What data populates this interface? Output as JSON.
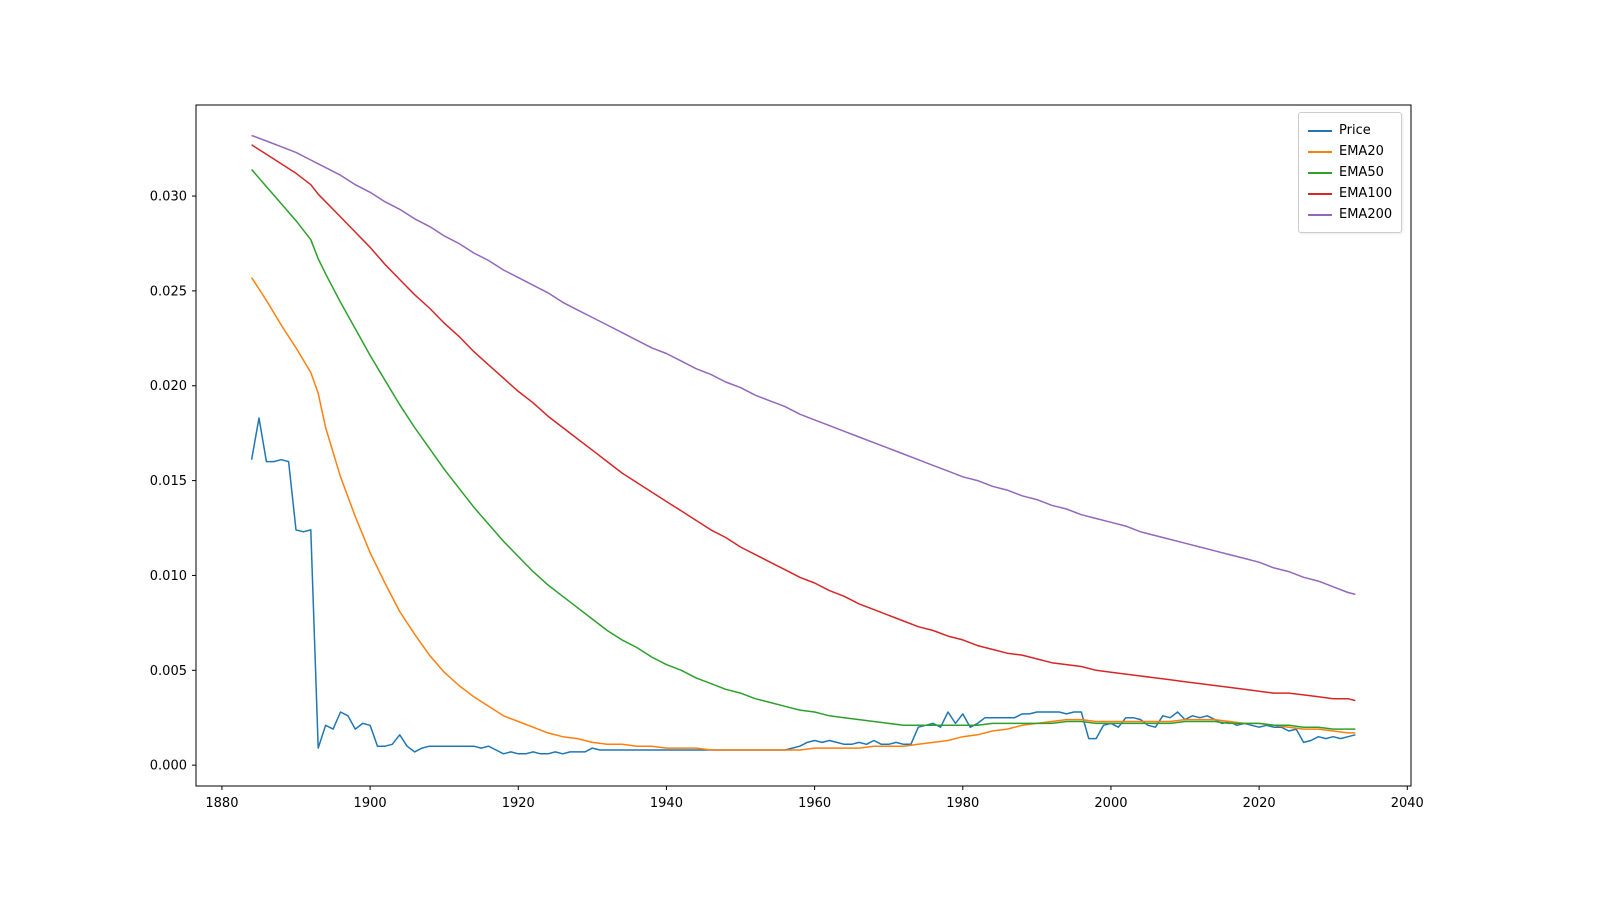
{
  "chart_data": {
    "type": "line",
    "title": "",
    "xlabel": "",
    "ylabel": "",
    "grid": false,
    "legend_position": "upper right",
    "background_color": "#ffffff",
    "axis_color": "#000000",
    "xlim": [
      1876.5,
      2040.5
    ],
    "ylim": [
      -0.0011,
      0.0348
    ],
    "x_ticks": [
      1880,
      1900,
      1920,
      1940,
      1960,
      1980,
      2000,
      2020,
      2040
    ],
    "y_ticks": [
      0.0,
      0.005,
      0.01,
      0.015,
      0.02,
      0.025,
      0.03
    ],
    "y_tick_labels": [
      "0.000",
      "0.005",
      "0.010",
      "0.015",
      "0.020",
      "0.025",
      "0.030"
    ],
    "x_ema": [
      1884,
      1886,
      1888,
      1890,
      1892,
      1893,
      1894,
      1896,
      1898,
      1900,
      1902,
      1904,
      1906,
      1908,
      1910,
      1912,
      1914,
      1916,
      1918,
      1920,
      1922,
      1924,
      1926,
      1928,
      1930,
      1932,
      1934,
      1936,
      1938,
      1940,
      1942,
      1944,
      1946,
      1948,
      1950,
      1952,
      1954,
      1956,
      1958,
      1960,
      1962,
      1964,
      1966,
      1968,
      1970,
      1972,
      1974,
      1976,
      1978,
      1980,
      1982,
      1984,
      1986,
      1988,
      1990,
      1992,
      1994,
      1996,
      1998,
      2000,
      2002,
      2004,
      2006,
      2008,
      2010,
      2012,
      2014,
      2016,
      2018,
      2020,
      2022,
      2024,
      2026,
      2028,
      2030,
      2032,
      2033
    ],
    "series": [
      {
        "name": "Price",
        "color": "#1f77b4",
        "x_start": 1884,
        "x_step": 1,
        "y": [
          0.0161,
          0.0183,
          0.016,
          0.016,
          0.0161,
          0.016,
          0.0124,
          0.0123,
          0.0124,
          0.0009,
          0.0021,
          0.0019,
          0.0028,
          0.0026,
          0.0019,
          0.0022,
          0.0021,
          0.001,
          0.001,
          0.0011,
          0.0016,
          0.001,
          0.0007,
          0.0009,
          0.001,
          0.001,
          0.001,
          0.001,
          0.001,
          0.001,
          0.001,
          0.0009,
          0.001,
          0.0008,
          0.0006,
          0.0007,
          0.0006,
          0.0006,
          0.0007,
          0.0006,
          0.0006,
          0.0007,
          0.0006,
          0.0007,
          0.0007,
          0.0007,
          0.0009,
          0.0008,
          0.0008,
          0.0008,
          0.0008,
          0.0008,
          0.0008,
          0.0008,
          0.0008,
          0.0008,
          0.0008,
          0.0008,
          0.0008,
          0.0008,
          0.0008,
          0.0008,
          0.0008,
          0.0008,
          0.0008,
          0.0008,
          0.0008,
          0.0008,
          0.0008,
          0.0008,
          0.0008,
          0.0008,
          0.0008,
          0.0009,
          0.001,
          0.0012,
          0.0013,
          0.0012,
          0.0013,
          0.0012,
          0.0011,
          0.0011,
          0.0012,
          0.0011,
          0.0013,
          0.0011,
          0.0011,
          0.0012,
          0.0011,
          0.0011,
          0.002,
          0.0021,
          0.0022,
          0.002,
          0.0028,
          0.0022,
          0.0027,
          0.002,
          0.0022,
          0.0025,
          0.0025,
          0.0025,
          0.0025,
          0.0025,
          0.0027,
          0.0027,
          0.0028,
          0.0028,
          0.0028,
          0.0028,
          0.0027,
          0.0028,
          0.0028,
          0.0014,
          0.0014,
          0.0021,
          0.0022,
          0.002,
          0.0025,
          0.0025,
          0.0024,
          0.0021,
          0.002,
          0.0026,
          0.0025,
          0.0028,
          0.0024,
          0.0026,
          0.0025,
          0.0026,
          0.0024,
          0.0022,
          0.0023,
          0.0021,
          0.0022,
          0.0021,
          0.002,
          0.0021,
          0.002,
          0.002,
          0.0018,
          0.0019,
          0.0012,
          0.0013,
          0.0015,
          0.0014,
          0.0015,
          0.0014,
          0.0015,
          0.0016
        ]
      },
      {
        "name": "EMA20",
        "color": "#ff7f0e",
        "x_ref": "x_ema",
        "y": [
          0.0257,
          0.0245,
          0.0232,
          0.022,
          0.0207,
          0.0196,
          0.0178,
          0.0152,
          0.0131,
          0.0112,
          0.0096,
          0.0081,
          0.0069,
          0.0058,
          0.0049,
          0.0042,
          0.0036,
          0.0031,
          0.0026,
          0.0023,
          0.002,
          0.0017,
          0.0015,
          0.0014,
          0.0012,
          0.0011,
          0.0011,
          0.001,
          0.001,
          0.0009,
          0.0009,
          0.0009,
          0.0008,
          0.0008,
          0.0008,
          0.0008,
          0.0008,
          0.0008,
          0.0008,
          0.0009,
          0.0009,
          0.0009,
          0.0009,
          0.001,
          0.001,
          0.001,
          0.0011,
          0.0012,
          0.0013,
          0.0015,
          0.0016,
          0.0018,
          0.0019,
          0.0021,
          0.0022,
          0.0023,
          0.0024,
          0.0024,
          0.0023,
          0.0023,
          0.0023,
          0.0023,
          0.0023,
          0.0023,
          0.0024,
          0.0024,
          0.0024,
          0.0023,
          0.0022,
          0.0022,
          0.0021,
          0.002,
          0.0019,
          0.0019,
          0.0018,
          0.0017,
          0.0017
        ]
      },
      {
        "name": "EMA50",
        "color": "#2ca02c",
        "x_ref": "x_ema",
        "y": [
          0.0314,
          0.0305,
          0.0296,
          0.0287,
          0.0277,
          0.0267,
          0.0259,
          0.0244,
          0.023,
          0.0216,
          0.0203,
          0.019,
          0.0178,
          0.0167,
          0.0156,
          0.0146,
          0.0136,
          0.0127,
          0.0118,
          0.011,
          0.0102,
          0.0095,
          0.0089,
          0.0083,
          0.0077,
          0.0071,
          0.0066,
          0.0062,
          0.0057,
          0.0053,
          0.005,
          0.0046,
          0.0043,
          0.004,
          0.0038,
          0.0035,
          0.0033,
          0.0031,
          0.0029,
          0.0028,
          0.0026,
          0.0025,
          0.0024,
          0.0023,
          0.0022,
          0.0021,
          0.0021,
          0.0021,
          0.0021,
          0.0021,
          0.0021,
          0.0022,
          0.0022,
          0.0022,
          0.0022,
          0.0022,
          0.0023,
          0.0023,
          0.0022,
          0.0022,
          0.0022,
          0.0022,
          0.0022,
          0.0022,
          0.0023,
          0.0023,
          0.0023,
          0.0022,
          0.0022,
          0.0022,
          0.0021,
          0.0021,
          0.002,
          0.002,
          0.0019,
          0.0019,
          0.0019
        ]
      },
      {
        "name": "EMA100",
        "color": "#d62728",
        "x_ref": "x_ema",
        "y": [
          0.0327,
          0.0322,
          0.0317,
          0.0312,
          0.0306,
          0.0301,
          0.0297,
          0.0289,
          0.0281,
          0.0273,
          0.0264,
          0.0256,
          0.0248,
          0.0241,
          0.0233,
          0.0226,
          0.0218,
          0.0211,
          0.0204,
          0.0197,
          0.0191,
          0.0184,
          0.0178,
          0.0172,
          0.0166,
          0.016,
          0.0154,
          0.0149,
          0.0144,
          0.0139,
          0.0134,
          0.0129,
          0.0124,
          0.012,
          0.0115,
          0.0111,
          0.0107,
          0.0103,
          0.0099,
          0.0096,
          0.0092,
          0.0089,
          0.0085,
          0.0082,
          0.0079,
          0.0076,
          0.0073,
          0.0071,
          0.0068,
          0.0066,
          0.0063,
          0.0061,
          0.0059,
          0.0058,
          0.0056,
          0.0054,
          0.0053,
          0.0052,
          0.005,
          0.0049,
          0.0048,
          0.0047,
          0.0046,
          0.0045,
          0.0044,
          0.0043,
          0.0042,
          0.0041,
          0.004,
          0.0039,
          0.0038,
          0.0038,
          0.0037,
          0.0036,
          0.0035,
          0.0035,
          0.0034
        ]
      },
      {
        "name": "EMA200",
        "color": "#9467bd",
        "x_ref": "x_ema",
        "y": [
          0.0332,
          0.0329,
          0.0326,
          0.0323,
          0.0319,
          0.0317,
          0.0315,
          0.0311,
          0.0306,
          0.0302,
          0.0297,
          0.0293,
          0.0288,
          0.0284,
          0.0279,
          0.0275,
          0.027,
          0.0266,
          0.0261,
          0.0257,
          0.0253,
          0.0249,
          0.0244,
          0.024,
          0.0236,
          0.0232,
          0.0228,
          0.0224,
          0.022,
          0.0217,
          0.0213,
          0.0209,
          0.0206,
          0.0202,
          0.0199,
          0.0195,
          0.0192,
          0.0189,
          0.0185,
          0.0182,
          0.0179,
          0.0176,
          0.0173,
          0.017,
          0.0167,
          0.0164,
          0.0161,
          0.0158,
          0.0155,
          0.0152,
          0.015,
          0.0147,
          0.0145,
          0.0142,
          0.014,
          0.0137,
          0.0135,
          0.0132,
          0.013,
          0.0128,
          0.0126,
          0.0123,
          0.0121,
          0.0119,
          0.0117,
          0.0115,
          0.0113,
          0.0111,
          0.0109,
          0.0107,
          0.0104,
          0.0102,
          0.0099,
          0.0097,
          0.0094,
          0.0091,
          0.009
        ]
      }
    ]
  }
}
